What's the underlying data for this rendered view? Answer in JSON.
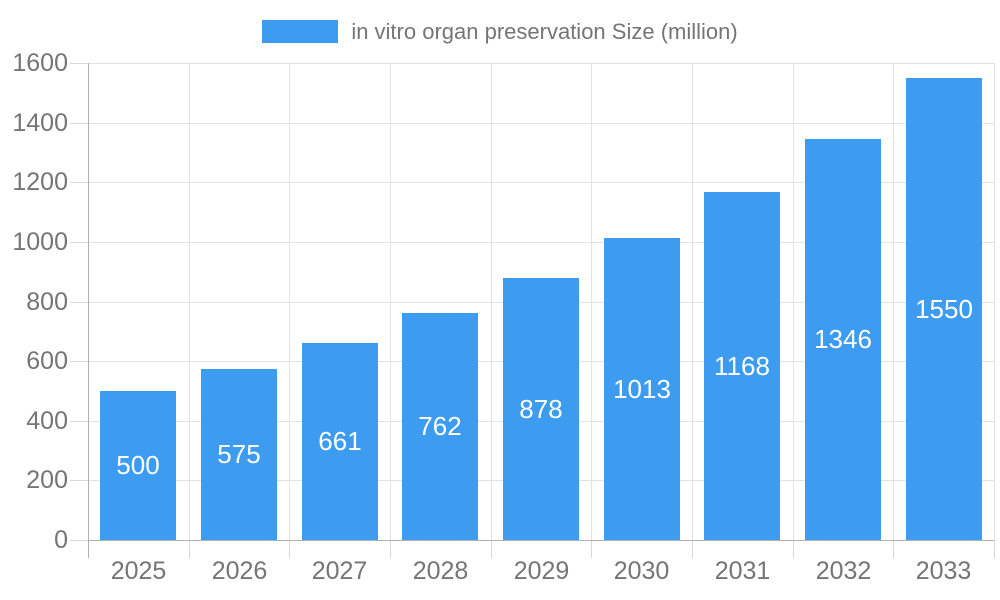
{
  "chart_data": {
    "type": "bar",
    "title": "",
    "categories": [
      "2025",
      "2026",
      "2027",
      "2028",
      "2029",
      "2030",
      "2031",
      "2032",
      "2033"
    ],
    "series": [
      {
        "name": "in vitro organ preservation Size (million)",
        "values": [
          500,
          575,
          661,
          762,
          878,
          1013,
          1168,
          1346,
          1550
        ]
      }
    ],
    "value_labels_shown": true,
    "xlabel": "",
    "ylabel": "",
    "ylim": [
      0,
      1600
    ],
    "ytick_step": 200,
    "yticks": [
      "0",
      "200",
      "400",
      "600",
      "800",
      "1000",
      "1200",
      "1400",
      "1600"
    ],
    "grid": true,
    "legend_position": "top",
    "colors": {
      "bar": "#3D9BF0",
      "grid": "#E2E2E2",
      "axis": "#B0B0B0",
      "tick": "#D9D9D9",
      "tick_text": "#757575",
      "value_text": "#FFFFFF",
      "background": "#FFFFFF"
    }
  }
}
